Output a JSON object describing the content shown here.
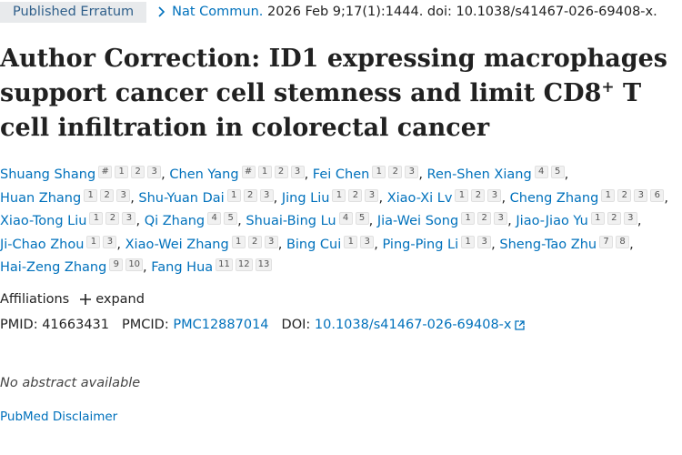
{
  "header": {
    "badge": "Published Erratum",
    "journal": "Nat Commun.",
    "citation": "2026 Feb 9;17(1):1444. doi: 10.1038/s41467-026-69408-x."
  },
  "title": {
    "before_sup": "Author Correction: ID1 expressing macrophages support cancer cell stemness and limit CD8",
    "sup": "+",
    "after_sup": " T cell infiltration in colorectal cancer"
  },
  "author_separator": ",",
  "authors": [
    {
      "name": "Shuang Shang",
      "marks": [
        "#",
        "1",
        "2",
        "3"
      ]
    },
    {
      "name": "Chen Yang",
      "marks": [
        "#",
        "1",
        "2",
        "3"
      ]
    },
    {
      "name": "Fei Chen",
      "marks": [
        "1",
        "2",
        "3"
      ]
    },
    {
      "name": "Ren-Shen Xiang",
      "marks": [
        "4",
        "5"
      ]
    },
    {
      "name": "Huan Zhang",
      "marks": [
        "1",
        "2",
        "3"
      ]
    },
    {
      "name": "Shu-Yuan Dai",
      "marks": [
        "1",
        "2",
        "3"
      ]
    },
    {
      "name": "Jing Liu",
      "marks": [
        "1",
        "2",
        "3"
      ]
    },
    {
      "name": "Xiao-Xi Lv",
      "marks": [
        "1",
        "2",
        "3"
      ]
    },
    {
      "name": "Cheng Zhang",
      "marks": [
        "1",
        "2",
        "3",
        "6"
      ]
    },
    {
      "name": "Xiao-Tong Liu",
      "marks": [
        "1",
        "2",
        "3"
      ]
    },
    {
      "name": "Qi Zhang",
      "marks": [
        "4",
        "5"
      ]
    },
    {
      "name": "Shuai-Bing Lu",
      "marks": [
        "4",
        "5"
      ]
    },
    {
      "name": "Jia-Wei Song",
      "marks": [
        "1",
        "2",
        "3"
      ]
    },
    {
      "name": "Jiao-Jiao Yu",
      "marks": [
        "1",
        "2",
        "3"
      ]
    },
    {
      "name": "Ji-Chao Zhou",
      "marks": [
        "1",
        "3"
      ]
    },
    {
      "name": "Xiao-Wei Zhang",
      "marks": [
        "1",
        "2",
        "3"
      ]
    },
    {
      "name": "Bing Cui",
      "marks": [
        "1",
        "3"
      ]
    },
    {
      "name": "Ping-Ping Li",
      "marks": [
        "1",
        "3"
      ]
    },
    {
      "name": "Sheng-Tao Zhu",
      "marks": [
        "7",
        "8"
      ]
    },
    {
      "name": "Hai-Zeng Zhang",
      "marks": [
        "9",
        "10"
      ]
    },
    {
      "name": "Fang Hua",
      "marks": [
        "11",
        "12",
        "13"
      ]
    }
  ],
  "affiliations": {
    "label": "Affiliations",
    "expand": "expand"
  },
  "identifiers": {
    "pmid_label": "PMID:",
    "pmid": "41663431",
    "pmcid_label": "PMCID:",
    "pmcid": "PMC12887014",
    "doi_label": "DOI:",
    "doi": "10.1038/s41467-026-69408-x"
  },
  "abstract": "No abstract available",
  "disclaimer": "PubMed Disclaimer"
}
